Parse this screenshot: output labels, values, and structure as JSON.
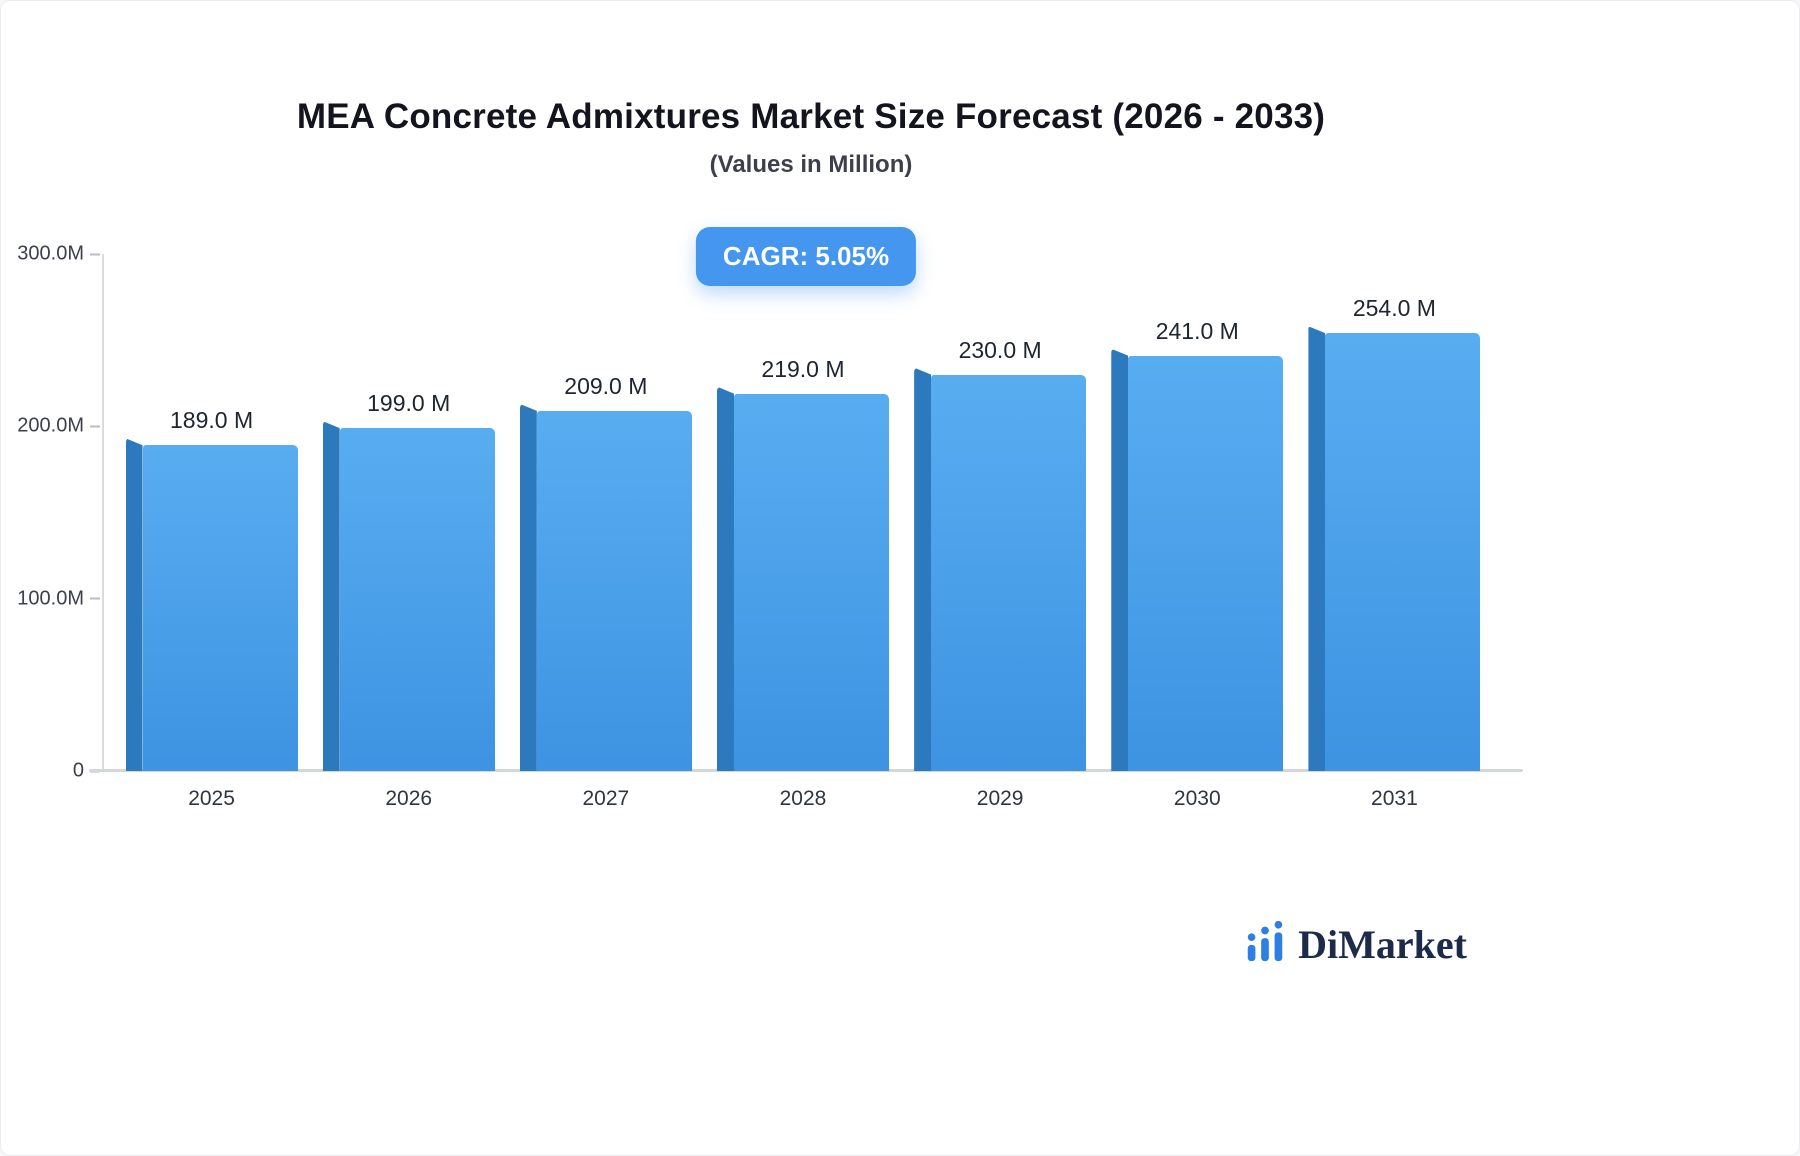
{
  "chart_data": {
    "type": "bar",
    "title": "MEA Concrete Admixtures Market Size Forecast (2026 - 2033)",
    "subtitle": "(Values in Million)",
    "badge": "CAGR: 5.05%",
    "categories": [
      "2025",
      "2026",
      "2027",
      "2028",
      "2029",
      "2030",
      "2031"
    ],
    "values": [
      189,
      199,
      209,
      219,
      230,
      241,
      254
    ],
    "bar_labels": [
      "189.0 M",
      "199.0 M",
      "209.0 M",
      "219.0 M",
      "230.0 M",
      "241.0 M",
      "254.0 M"
    ],
    "unit": "Million",
    "xlabel": "",
    "ylabel": "",
    "ylim": [
      0,
      300
    ],
    "yticks": [
      {
        "value": 300,
        "label": "300.0M"
      },
      {
        "value": 200,
        "label": "200.0M"
      },
      {
        "value": 100,
        "label": "100.0M"
      },
      {
        "value": 0,
        "label": "0"
      }
    ],
    "grid": false,
    "legend": false
  },
  "colors": {
    "bar_face_top": "#58ADF1",
    "bar_face_bottom": "#3E93E2",
    "bar_side": "#2C79BE",
    "badge_bg": "#4596EF",
    "accent": "#2D7FE3",
    "logo_text": "#1C2B4A"
  },
  "logo": {
    "text": "DiMarket"
  }
}
